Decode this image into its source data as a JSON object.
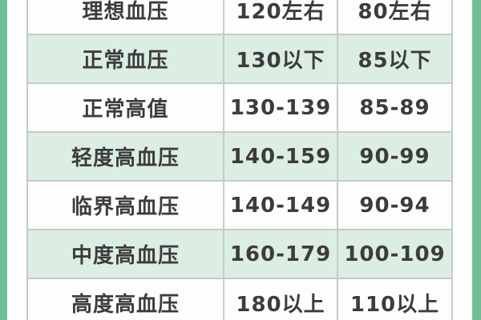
{
  "theme": {
    "background_green": "#6dbf93",
    "card_white": "#fdfdfd",
    "row_alt_green": "#dcede3",
    "grid_line": "#c6cbc7",
    "text_color": "#3c3c3c"
  },
  "chart_data": {
    "type": "table",
    "title": "",
    "rows": [
      [
        "理想血压",
        "120左右",
        "80左右"
      ],
      [
        "正常血压",
        "130以下",
        "85以下"
      ],
      [
        "正常高值",
        "130-139",
        "85-89"
      ],
      [
        "轻度高血压",
        "140-159",
        "90-99"
      ],
      [
        "临界高血压",
        "140-149",
        "90-94"
      ],
      [
        "中度高血压",
        "160-179",
        "100-109"
      ],
      [
        "高度高血压",
        "180以上",
        "110以上"
      ]
    ]
  }
}
